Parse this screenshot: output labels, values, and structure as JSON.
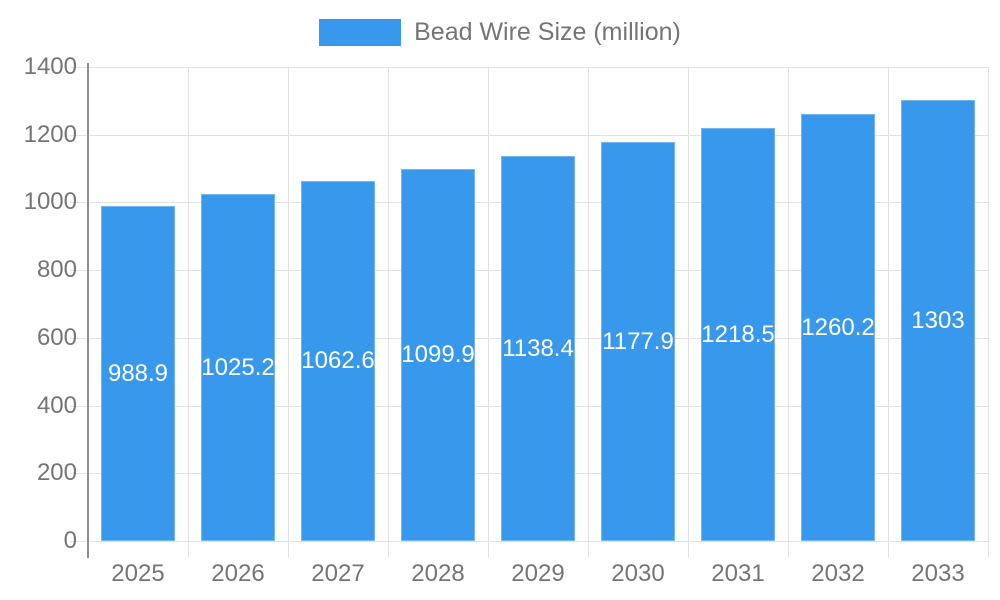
{
  "legend": {
    "label": "Bead Wire Size (million)"
  },
  "chart_data": {
    "type": "bar",
    "title": "",
    "xlabel": "",
    "ylabel": "",
    "categories": [
      "2025",
      "2026",
      "2027",
      "2028",
      "2029",
      "2030",
      "2031",
      "2032",
      "2033"
    ],
    "series": [
      {
        "name": "Bead Wire Size (million)",
        "color": "#3898ec",
        "values": [
          988.9,
          1025.2,
          1062.6,
          1099.9,
          1138.4,
          1177.9,
          1218.5,
          1260.2,
          1303
        ],
        "value_labels": [
          "988.9",
          "1025.2",
          "1062.6",
          "1099.9",
          "1138.4",
          "1177.9",
          "1218.5",
          "1260.2",
          "1303"
        ]
      }
    ],
    "ylim": [
      0,
      1400
    ],
    "yticks": [
      0,
      200,
      400,
      600,
      800,
      1000,
      1200,
      1400
    ],
    "grid": true,
    "legend_position": "top",
    "colors": {
      "bar": "#3898ec",
      "bar_stroke": "#74b4f0",
      "gridline": "#e2e2e2",
      "axis_line": "#919191",
      "axis_text": "#757575",
      "value_label": "#ffffff",
      "background": "#ffffff"
    }
  }
}
